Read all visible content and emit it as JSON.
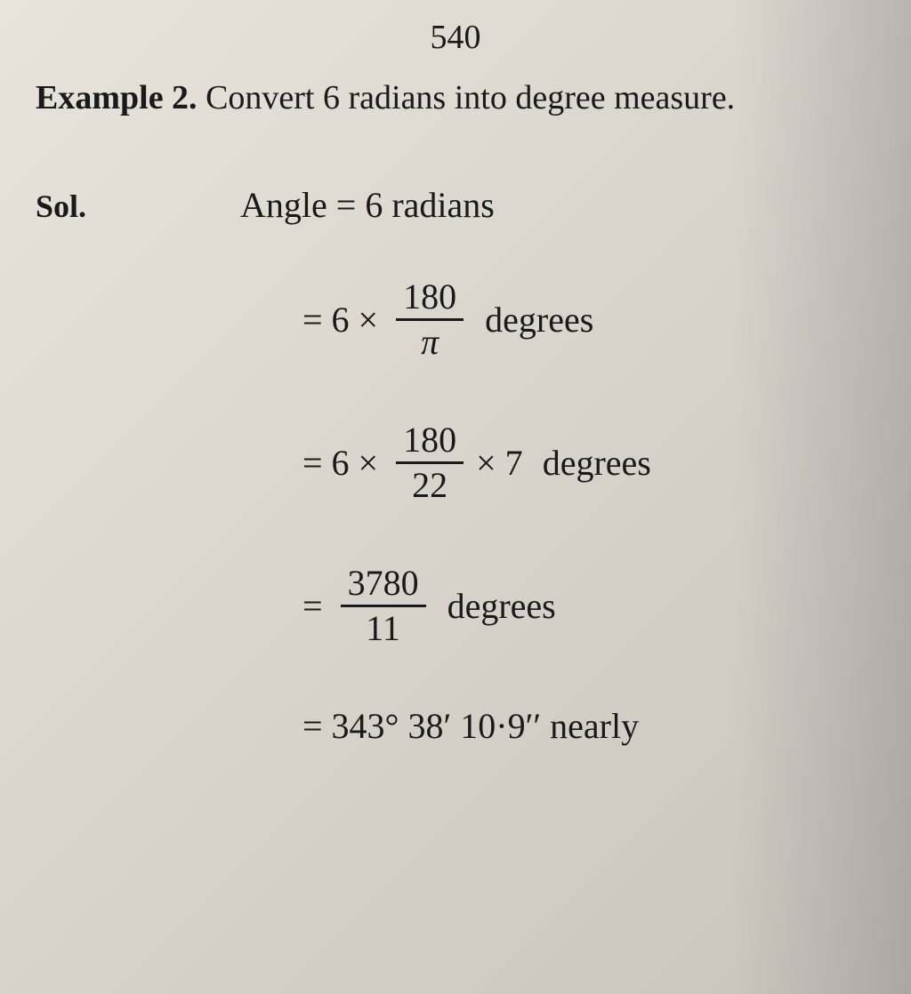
{
  "page_number": "540",
  "example": {
    "label": "Example 2.",
    "text": "Convert 6 radians into degree measure."
  },
  "solution": {
    "label": "Sol.",
    "given": "Angle = 6 radians",
    "steps": [
      {
        "prefix": "= 6 ×",
        "frac_num": "180",
        "frac_den_pi": "π",
        "suffix": "degrees"
      },
      {
        "prefix": "= 6 ×",
        "frac_num": "180",
        "frac_den": "22",
        "mid": "× 7",
        "suffix": "degrees"
      },
      {
        "prefix": "=",
        "frac_num": "3780",
        "frac_den": "11",
        "suffix": "degrees"
      },
      {
        "text": "= 343° 38′ 10·9′′ nearly"
      }
    ]
  },
  "style": {
    "background_gradient": [
      "#e8e4dc",
      "#d8d4cc",
      "#c8c4bc"
    ],
    "text_color": "#1a1a1a",
    "body_fontsize": 40,
    "heading_fontsize": 38,
    "font_family": "Times New Roman"
  }
}
